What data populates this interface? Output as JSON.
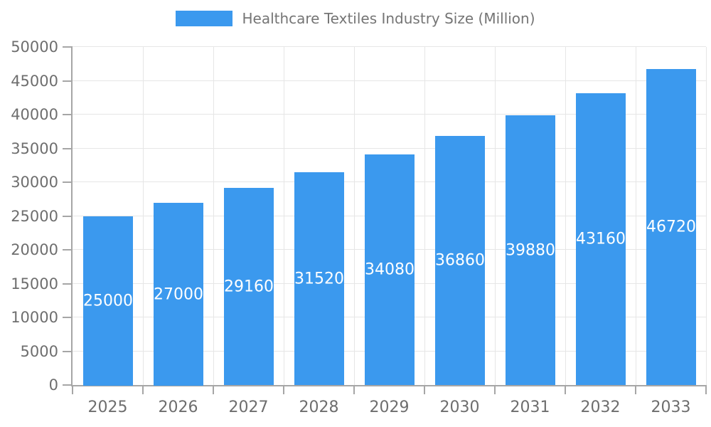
{
  "legend": {
    "label": "Healthcare Textiles Industry Size (Million)"
  },
  "colors": {
    "bar": "#3b99ee",
    "grid": "#e6e6e6",
    "axis": "#a6a6a6",
    "tick_label": "#6e6e6e",
    "bar_label": "#ffffff",
    "legend_text": "#757575",
    "background": "#ffffff"
  },
  "chart_data": {
    "type": "bar",
    "title": "Healthcare Textiles Industry Size (Million)",
    "categories": [
      "2025",
      "2026",
      "2027",
      "2028",
      "2029",
      "2030",
      "2031",
      "2032",
      "2033"
    ],
    "values": [
      25000,
      27000,
      29160,
      31520,
      34080,
      36860,
      39880,
      43160,
      46720
    ],
    "xlabel": "",
    "ylabel": "",
    "ylim": [
      0,
      50000
    ],
    "ytick_step": 5000,
    "ytick_labels": [
      "0",
      "5000",
      "10000",
      "15000",
      "20000",
      "25000",
      "30000",
      "35000",
      "40000",
      "45000",
      "50000"
    ],
    "grid": true,
    "legend_position": "top",
    "value_labels": "inside-center"
  }
}
